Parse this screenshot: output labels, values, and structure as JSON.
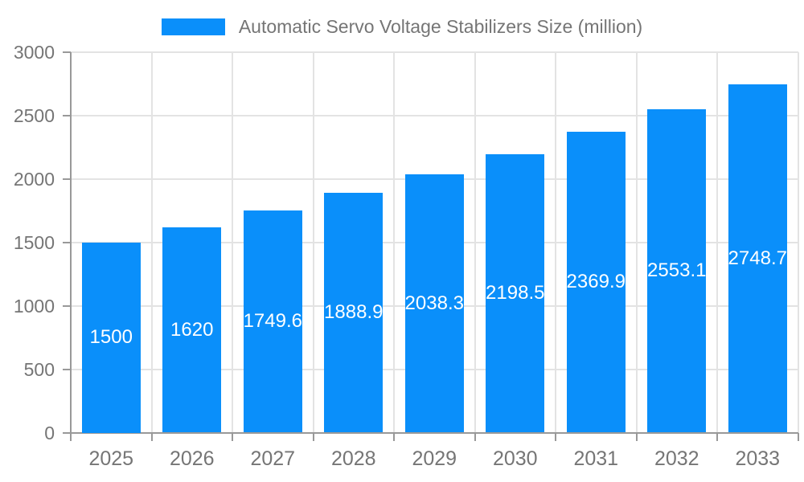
{
  "chart_data": {
    "type": "bar",
    "title": "",
    "legend": "Automatic Servo Voltage Stabilizers Size (million)",
    "legend_position": "top-center",
    "categories": [
      "2025",
      "2026",
      "2027",
      "2028",
      "2029",
      "2030",
      "2031",
      "2032",
      "2033"
    ],
    "values": [
      1500,
      1620,
      1749.6,
      1888.9,
      2038.3,
      2198.5,
      2369.9,
      2553.1,
      2748.7
    ],
    "bar_labels": [
      "1500",
      "1620",
      "1749.6",
      "1888.9",
      "2038.3",
      "2198.5",
      "2369.9",
      "2553.1",
      "2748.7"
    ],
    "bar_label_position": "inside-center",
    "xlabel": "",
    "ylabel": "",
    "ylim": [
      0,
      3000
    ],
    "yticks": [
      0,
      500,
      1000,
      1500,
      2000,
      2500,
      3000
    ],
    "grid": true,
    "colors": {
      "bar": "#0a8ffa",
      "axis": "#999999",
      "grid": "#e3e3e3",
      "text": "#757575",
      "bar_label": "#ffffff",
      "background": "#ffffff"
    }
  }
}
